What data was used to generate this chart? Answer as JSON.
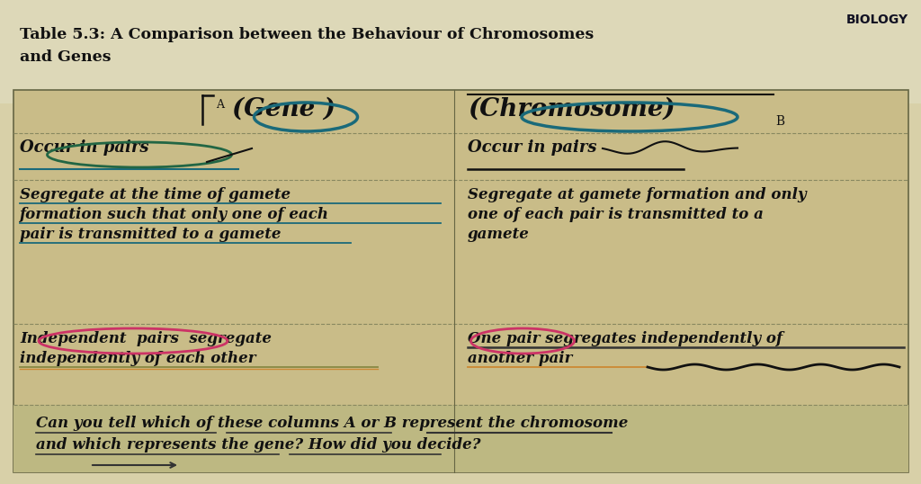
{
  "biology_label": "BIOLOGY",
  "title_line1": "Table 5.3: A Comparison between the Behaviour of Chromosomes",
  "title_line2": "and Genes",
  "col_a_label": "A",
  "col_a_word": "(Gene )",
  "col_b_word": "(Chromosome)",
  "col_b_label": "B",
  "row1_a": "Occur in pairs",
  "row1_b": "Occur in pairs",
  "row2_a_1": "Segregate at the time of gamete",
  "row2_a_2": "formation such that only one of each",
  "row2_a_3": "pair is transmitted to a gamete",
  "row2_b_1": "Segregate at gamete formation and only",
  "row2_b_2": "one of each pair is transmitted to a",
  "row2_b_3": "gamete",
  "row3_a_1": "Independent  pairs  segregate",
  "row3_a_2": "independently of each other",
  "row3_b_1": "One pair segregates independently of",
  "row3_b_2": "another pair",
  "footer_1": "Can you tell which of these columns A or B represent the chromosome",
  "footer_2": "and which represents the gene? How did you decide?",
  "page_bg": "#d8cfa0",
  "table_bg": "#c9bc88",
  "footer_bg": "#bdb07a",
  "text_color": "#111111",
  "teal_color": "#1a6a7a",
  "pink_color": "#cc3366",
  "green_color": "#226644"
}
